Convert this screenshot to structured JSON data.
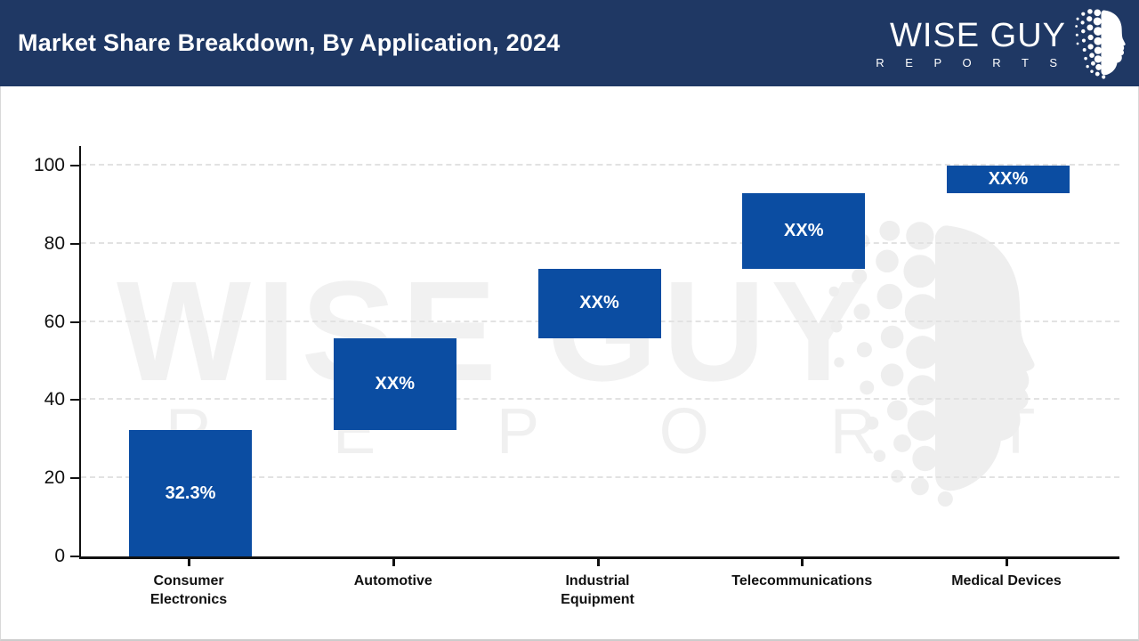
{
  "header": {
    "title": "Market Share Breakdown, By Application, 2024",
    "bg_color": "#1f3864",
    "logo": {
      "wordmark": "WISE GUY",
      "subtext": "R E P O R T S"
    }
  },
  "watermark": {
    "wordmark": "WISE GUY",
    "subtext": "R E P O R T S"
  },
  "chart_data": {
    "type": "bar",
    "subtype": "waterfall",
    "title": "Market Share Breakdown, By Application, 2024",
    "categories": [
      [
        "Consumer",
        "Electronics"
      ],
      [
        "Automotive"
      ],
      [
        "Industrial",
        "Equipment"
      ],
      [
        "Telecommunications"
      ],
      [
        "Medical Devices"
      ]
    ],
    "segments": [
      {
        "category": "Consumer Electronics",
        "start": 0,
        "end": 32.3,
        "label": "32.3%"
      },
      {
        "category": "Automotive",
        "start": 32.3,
        "end": 55.8,
        "label": "XX%"
      },
      {
        "category": "Industrial Equipment",
        "start": 55.8,
        "end": 73.6,
        "label": "XX%"
      },
      {
        "category": "Telecommunications",
        "start": 73.6,
        "end": 92.9,
        "label": "XX%"
      },
      {
        "category": "Medical Devices",
        "start": 92.9,
        "end": 100,
        "label": "XX%"
      }
    ],
    "ylim": [
      0,
      100
    ],
    "yticks": [
      0,
      20,
      40,
      60,
      80,
      100
    ],
    "xlabel": "",
    "ylabel": "",
    "grid": "horizontal-dashed",
    "legend": "none",
    "bar_color": "#0b4da2",
    "bar_label_color": "#ffffff"
  }
}
